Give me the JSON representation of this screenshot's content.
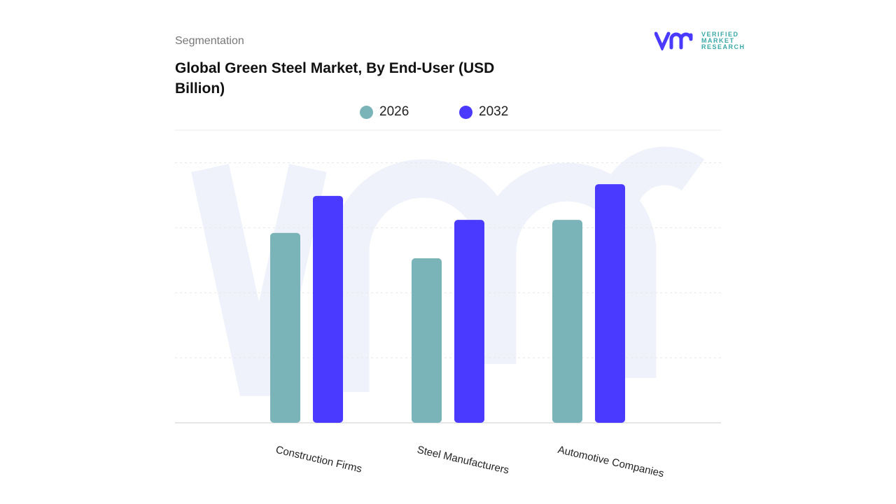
{
  "header": {
    "segment_label": "Segmentation",
    "title": "Global Green Steel Market, By End-User (USD Billion)"
  },
  "logo": {
    "text_lines": [
      "VERIFIED",
      "MARKET",
      "RESEARCH"
    ],
    "mark": "vmr"
  },
  "chart_data": {
    "type": "bar",
    "title": "Global Green Steel Market, By End-User (USD Billion)",
    "categories": [
      "Construction Firms",
      "Steel Manufacturers",
      "Automotive Companies"
    ],
    "series": [
      {
        "name": "2026",
        "color": "#7ab3b8",
        "values": [
          2.92,
          2.53,
          3.12
        ]
      },
      {
        "name": "2032",
        "color": "#4a3aff",
        "values": [
          3.49,
          3.12,
          3.67
        ]
      }
    ],
    "ylim": [
      0,
      4.5
    ],
    "grid": true,
    "legend": "top-center",
    "xlabel": "",
    "ylabel": ""
  }
}
